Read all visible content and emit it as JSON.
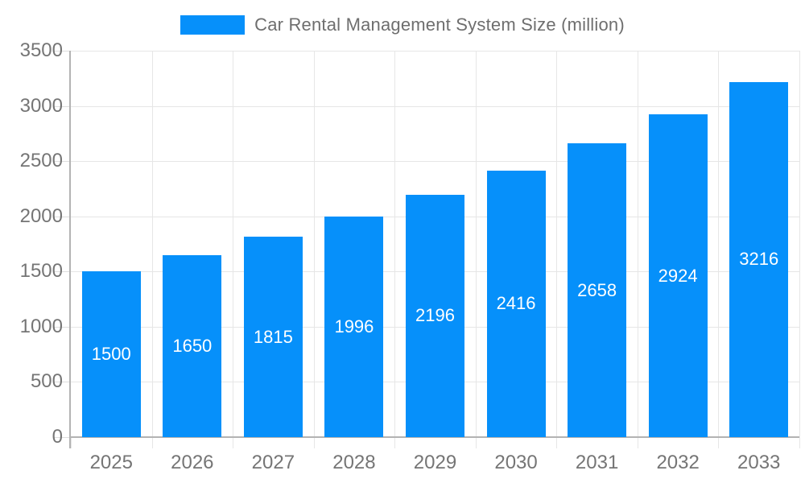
{
  "legend": {
    "label": "Car Rental Management System Size (million)"
  },
  "chart_data": {
    "type": "bar",
    "title": "Car Rental Management System Size (million)",
    "categories": [
      "2025",
      "2026",
      "2027",
      "2028",
      "2029",
      "2030",
      "2031",
      "2032",
      "2033"
    ],
    "values": [
      1500,
      1650,
      1815,
      1996,
      2196,
      2416,
      2658,
      2924,
      3216
    ],
    "xlabel": "",
    "ylabel": "",
    "ylim": [
      0,
      3500
    ],
    "ytick_step": 500,
    "yticks": [
      0,
      500,
      1000,
      1500,
      2000,
      2500,
      3000,
      3500
    ],
    "grid": true,
    "legend_position": "top-center",
    "value_labels": "inside-center",
    "colors": {
      "bar": "#0690fa",
      "bar_label": "#ffffff",
      "grid": "#e6e6e6",
      "axis_line": "#b3b3b3",
      "tick": "#dedede",
      "axis_text": "#757575",
      "title_text": "#6e6e6e",
      "background": "#ffffff"
    }
  }
}
